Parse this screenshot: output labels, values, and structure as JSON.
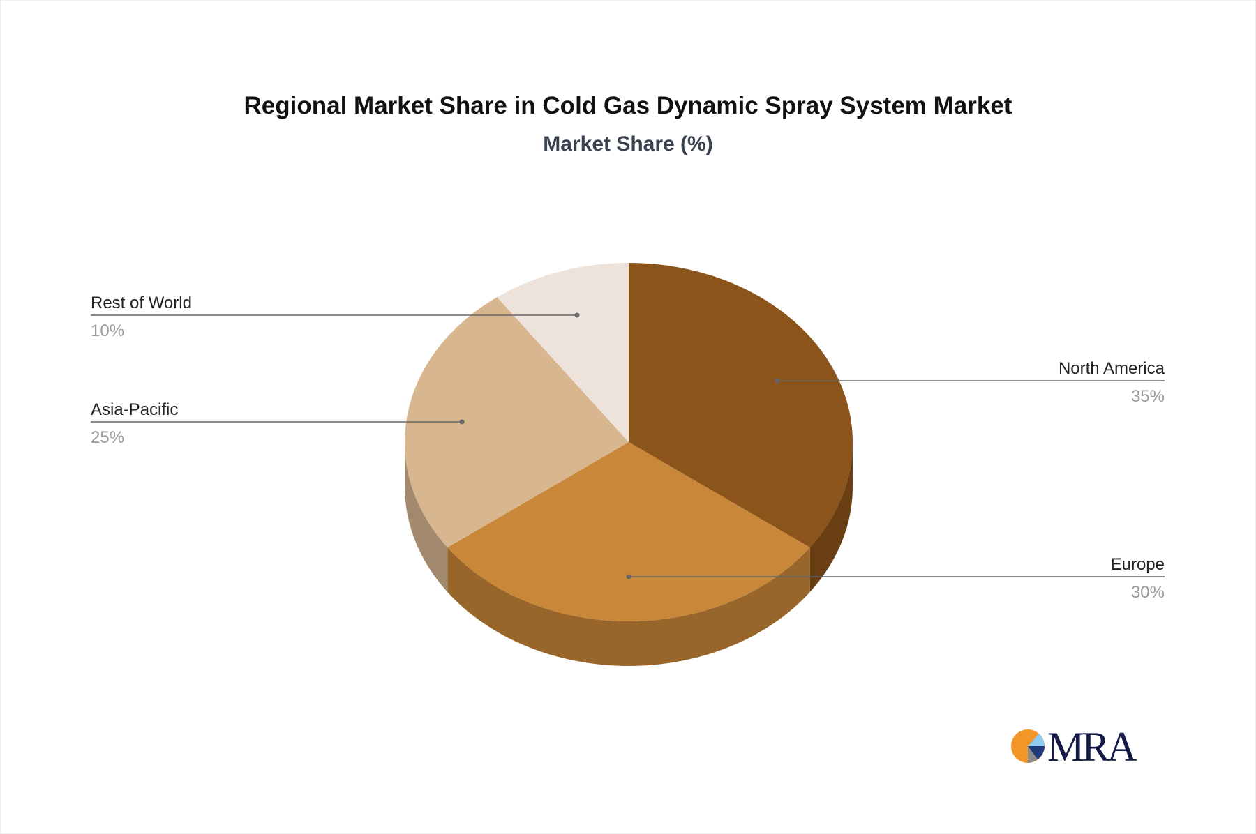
{
  "chart_data": {
    "type": "pie",
    "title": "Regional Market Share in Cold Gas Dynamic Spray System Market",
    "subtitle": "Market Share (%)",
    "three_d": true,
    "slices": [
      {
        "label": "North America",
        "value": 35,
        "value_label": "35%",
        "color": "#8B541A",
        "side_color": "#6A3F13"
      },
      {
        "label": "Europe",
        "value": 30,
        "value_label": "30%",
        "color": "#C98739",
        "side_color": "#98652A"
      },
      {
        "label": "Asia-Pacific",
        "value": 25,
        "value_label": "25%",
        "color": "#D8B690",
        "side_color": "#A38A6E"
      },
      {
        "label": "Rest of World",
        "value": 10,
        "value_label": "10%",
        "color": "#EEE3DA",
        "side_color": "#BDB2A8"
      }
    ]
  },
  "logo": {
    "text": "MRA"
  }
}
